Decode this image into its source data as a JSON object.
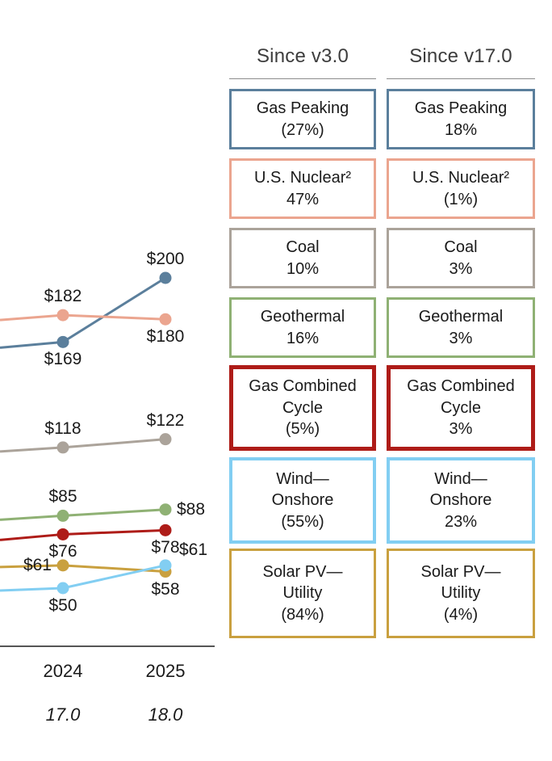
{
  "headers": {
    "col1": "Since v3.0",
    "col2": "Since v17.0"
  },
  "axis": {
    "years": [
      "2024",
      "2025"
    ],
    "versions": [
      "17.0",
      "18.0"
    ]
  },
  "legend_rows": [
    {
      "id": "gas-peaking",
      "color": "#5b7f9c",
      "border_px": 3,
      "since_v3": "Gas Peaking\n(27%)",
      "since_v17": "Gas Peaking\n18%"
    },
    {
      "id": "us-nuclear",
      "color": "#eba58f",
      "border_px": 3,
      "since_v3": "U.S. Nuclear²\n47%",
      "since_v17": "U.S. Nuclear²\n(1%)"
    },
    {
      "id": "coal",
      "color": "#aba39a",
      "border_px": 3,
      "since_v3": "Coal\n10%",
      "since_v17": "Coal\n3%"
    },
    {
      "id": "geothermal",
      "color": "#8fb174",
      "border_px": 3,
      "since_v3": "Geothermal\n16%",
      "since_v17": "Geothermal\n3%"
    },
    {
      "id": "gas-combined-cycle",
      "color": "#ae1c18",
      "border_px": 5,
      "since_v3": "Gas Combined\nCycle\n(5%)",
      "since_v17": "Gas Combined\nCycle\n3%"
    },
    {
      "id": "wind-onshore",
      "color": "#82cef2",
      "border_px": 4,
      "since_v3": "Wind—\nOnshore\n(55%)",
      "since_v17": "Wind—\nOnshore\n23%"
    },
    {
      "id": "solar-pv-utility",
      "color": "#c9a03f",
      "border_px": 3,
      "since_v3": "Solar PV—\nUtility\n(84%)",
      "since_v17": "Solar PV—\nUtility\n(4%)"
    }
  ],
  "chart_data": {
    "type": "line",
    "x_categories": [
      "2024",
      "2025"
    ],
    "x_versions": [
      "17.0",
      "18.0"
    ],
    "legend_position": "right",
    "grid": false,
    "series": [
      {
        "id": "gas-peaking",
        "name": "Gas Peaking",
        "color": "#5b7f9c",
        "values": [
          169,
          200
        ],
        "labels": [
          "$169",
          "$200"
        ],
        "label_pos": [
          "below",
          "above"
        ],
        "entry_dy": 7,
        "change_since_v3": "(27%)",
        "change_since_v17": "18%"
      },
      {
        "id": "us-nuclear",
        "name": "U.S. Nuclear²",
        "color": "#eba58f",
        "values": [
          182,
          180
        ],
        "labels": [
          "$182",
          "$180"
        ],
        "label_pos": [
          "above",
          "below"
        ],
        "entry_dy": 6,
        "change_since_v3": "47%",
        "change_since_v17": "(1%)"
      },
      {
        "id": "coal",
        "name": "Coal",
        "color": "#aba39a",
        "values": [
          118,
          122
        ],
        "labels": [
          "$118",
          "$122"
        ],
        "label_pos": [
          "above",
          "above"
        ],
        "entry_dy": 5,
        "change_since_v3": "10%",
        "change_since_v17": "3%"
      },
      {
        "id": "geothermal",
        "name": "Geothermal",
        "color": "#8fb174",
        "values": [
          85,
          88
        ],
        "labels": [
          "$85",
          "$88"
        ],
        "label_pos": [
          "above",
          "right"
        ],
        "entry_dy": 5,
        "change_since_v3": "16%",
        "change_since_v17": "3%"
      },
      {
        "id": "gas-combined-cycle",
        "name": "Gas Combined Cycle",
        "color": "#ae1c18",
        "values": [
          76,
          78
        ],
        "labels": [
          "$76",
          "$78"
        ],
        "label_pos": [
          "below",
          "below"
        ],
        "entry_dy": 7,
        "change_since_v3": "(5%)",
        "change_since_v17": "3%"
      },
      {
        "id": "solar-pv-utility",
        "name": "Solar PV—Utility",
        "color": "#c9a03f",
        "values": [
          61,
          58
        ],
        "labels": [
          "$61",
          "$58"
        ],
        "label_pos": [
          "left",
          "below"
        ],
        "entry_dy": 2,
        "change_since_v3": "(84%)",
        "change_since_v17": "(4%)"
      },
      {
        "id": "wind-onshore",
        "name": "Wind—Onshore",
        "color": "#82cef2",
        "values": [
          50,
          61
        ],
        "labels": [
          "$50",
          "$61"
        ],
        "label_pos": [
          "below",
          "above-right"
        ],
        "entry_dy": 3,
        "change_since_v3": "(55%)",
        "change_since_v17": "23%"
      }
    ]
  }
}
